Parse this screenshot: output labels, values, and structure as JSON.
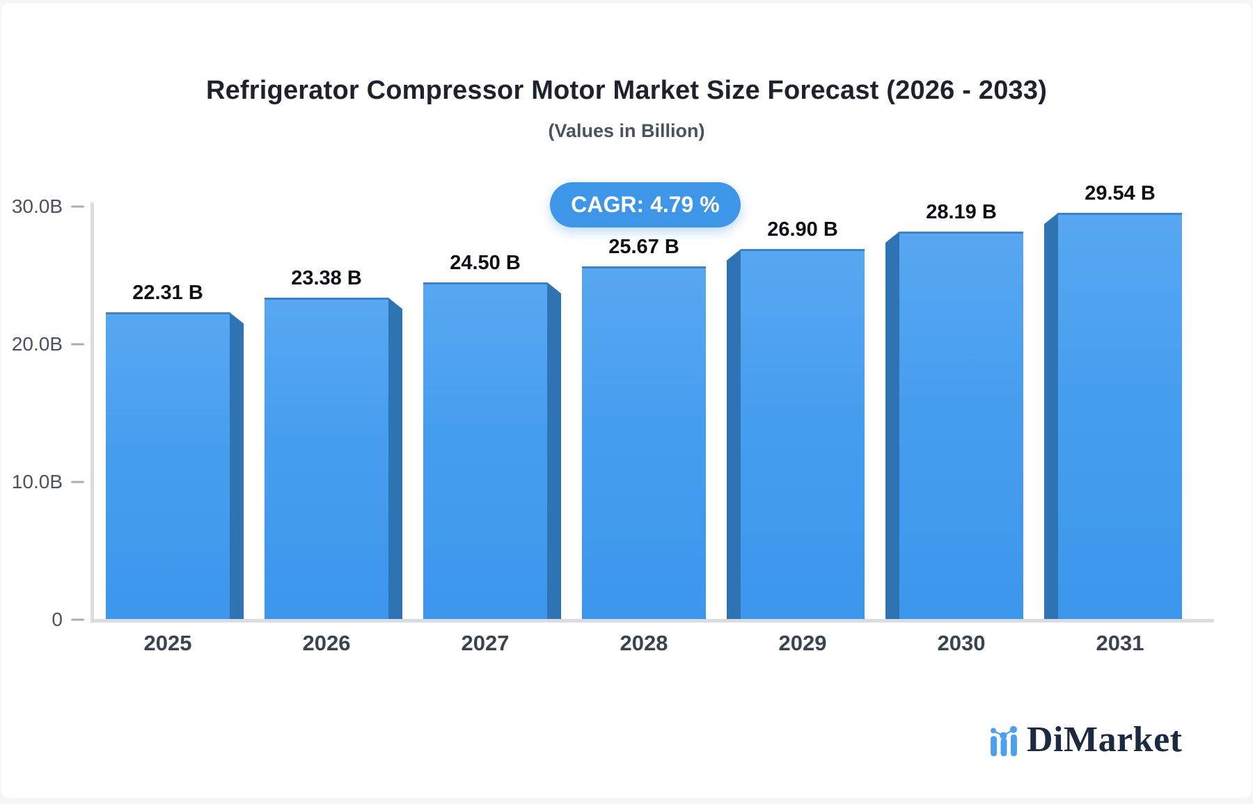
{
  "header": {
    "title": "Refrigerator Compressor Motor Market Size Forecast (2026 - 2033)",
    "subtitle": "(Values in Billion)",
    "cagr_label": "CAGR: 4.79 %"
  },
  "chart_data": {
    "type": "bar",
    "title": "Refrigerator Compressor Motor Market Size Forecast (2026 - 2033)",
    "subtitle": "(Values in Billion)",
    "annotation": "CAGR: 4.79 %",
    "categories": [
      "2025",
      "2026",
      "2027",
      "2028",
      "2029",
      "2030",
      "2031"
    ],
    "values": [
      22.31,
      23.38,
      24.5,
      25.67,
      26.9,
      28.19,
      29.54
    ],
    "value_labels": [
      "22.31 B",
      "23.38 B",
      "24.50 B",
      "25.67 B",
      "26.90 B",
      "28.19 B",
      "29.54 B"
    ],
    "xlabel": "",
    "ylabel": "",
    "ylim": [
      0,
      30
    ],
    "y_ticks": [
      {
        "label": "30.0B",
        "value": 30
      },
      {
        "label": "20.0B",
        "value": 20
      },
      {
        "label": "10.0B",
        "value": 10
      },
      {
        "label": "0",
        "value": 0
      }
    ],
    "grid": false,
    "legend": false,
    "style": "3d-perspective-bars",
    "colors": {
      "bar_face_top": "#57a7f1",
      "bar_face_bottom": "#3c96ec",
      "bar_side": "#2e73b2",
      "badge_background": "#3e96e9",
      "badge_text": "#ffffff",
      "axis_line": "#d9dce1",
      "logo_blue": "#4aa1f1",
      "logo_text": "#1b2a40"
    }
  },
  "footer": {
    "brand": "DiMarket"
  }
}
